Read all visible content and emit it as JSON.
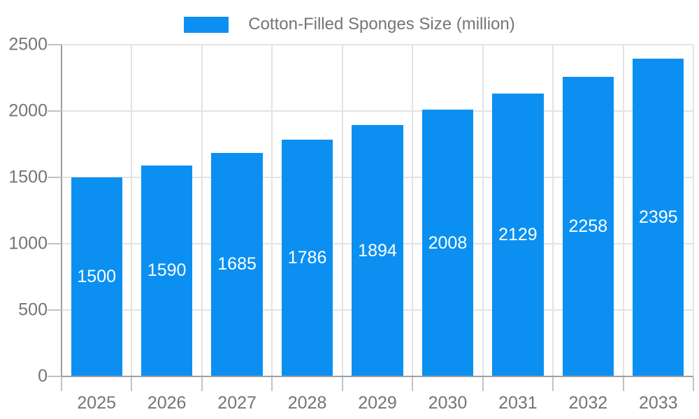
{
  "chart_data": {
    "type": "bar",
    "title": "Cotton-Filled Sponges Size (million)",
    "categories": [
      "2025",
      "2026",
      "2027",
      "2028",
      "2029",
      "2030",
      "2031",
      "2032",
      "2033"
    ],
    "series": [
      {
        "name": "Cotton-Filled Sponges Size (million)",
        "values": [
          1500,
          1590,
          1685,
          1786,
          1894,
          2008,
          2129,
          2258,
          2395
        ],
        "color": "#0b90f2"
      }
    ],
    "xlabel": "",
    "ylabel": "",
    "ylim": [
      0,
      2500
    ],
    "ytick_step": 500,
    "yticklabels": [
      "0",
      "500",
      "1000",
      "1500",
      "2000",
      "2500"
    ],
    "grid": true,
    "legend_position": "top",
    "bar_labels_position": "inside-center"
  },
  "colors": {
    "bar": "#0b90f2",
    "axis_line": "#9e9e9e",
    "tick": "#c2c2c2",
    "gridline": "#e3e3e3",
    "label_text": "#757575",
    "bar_label_text": "#ffffff",
    "background": "#ffffff"
  }
}
